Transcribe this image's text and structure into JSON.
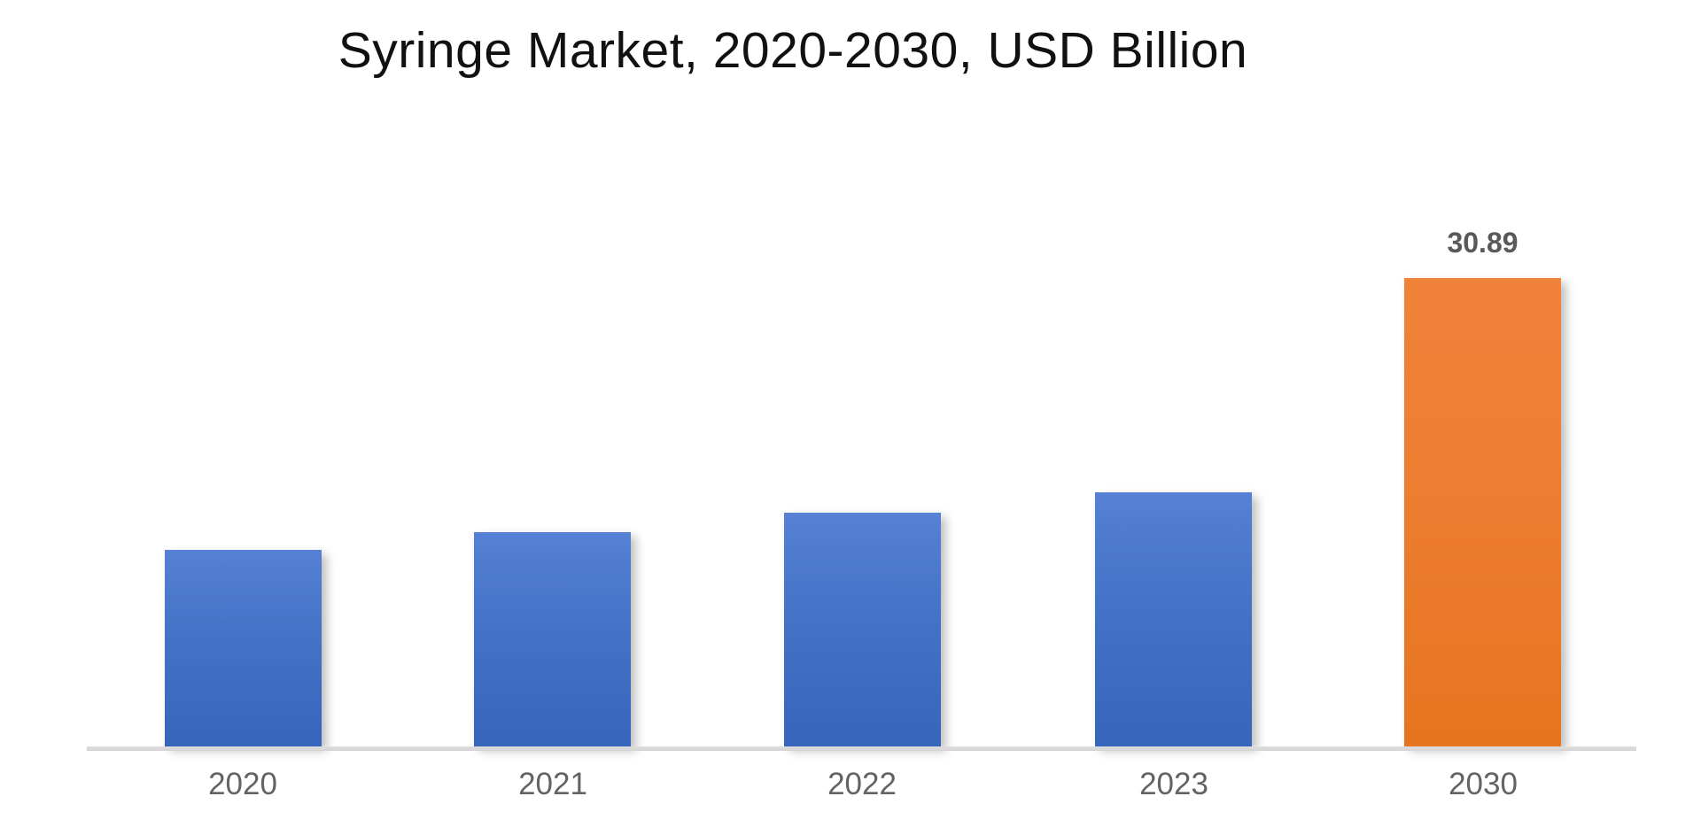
{
  "chart_data": {
    "type": "bar",
    "title": "Syringe Market, 2020-2030, USD Billion",
    "categories": [
      "2020",
      "2021",
      "2022",
      "2023",
      "2030"
    ],
    "values": [
      12.96,
      14.13,
      15.42,
      16.77,
      30.89
    ],
    "value_labels": [
      "",
      "",
      "",
      "",
      "30.89"
    ],
    "highlight_index": 4,
    "xlabel": "",
    "ylabel": "",
    "ylim": [
      0,
      33
    ],
    "grid": false,
    "legend": false,
    "layout_hints": {
      "axis_line": "bottom only, light gray",
      "bar_gap": "about 2x bar width",
      "value_label_position": "above highlighted bar only"
    },
    "colors": {
      "bar_default": "#4472C4",
      "bar_highlight": "#ED7D31",
      "axis_line": "#D9D9D9",
      "category_label": "#636363",
      "value_label": "#595959",
      "title": "#111111",
      "background": "#FFFFFF"
    }
  }
}
